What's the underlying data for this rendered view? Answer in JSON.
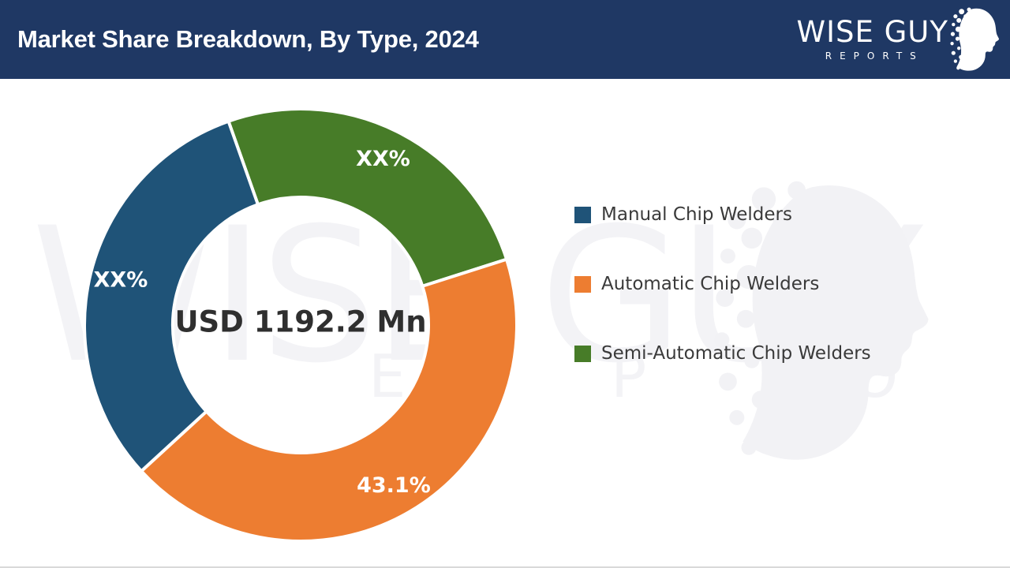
{
  "header": {
    "title": "Market Share Breakdown, By Type, 2024",
    "logo": {
      "wordmark": "WISE GUY",
      "subtext": "REPORTS"
    }
  },
  "watermark": {
    "wordmark": "WISE GUY",
    "subtext": "R E P O R T S"
  },
  "chart_data": {
    "type": "pie",
    "subtype": "donut",
    "title": "Market Share Breakdown, By Type, 2024",
    "center_label": "USD 1192.2 Mn",
    "unit": "percent of market share",
    "start_angle_deg": 109.5,
    "direction": "clockwise",
    "segments": [
      {
        "name": "Semi-Automatic Chip Welders",
        "value": 25.5,
        "display_label": "XX%",
        "color": "#477c28"
      },
      {
        "name": "Automatic Chip Welders",
        "value": 43.1,
        "display_label": "43.1%",
        "color": "#ed7d31"
      },
      {
        "name": "Manual Chip Welders",
        "value": 31.4,
        "display_label": "XX%",
        "color": "#1f5378"
      }
    ],
    "legend": [
      {
        "label": "Manual Chip Welders",
        "color": "#1f5378"
      },
      {
        "label": "Automatic Chip Welders",
        "color": "#ed7d31"
      },
      {
        "label": "Semi-Automatic Chip Welders",
        "color": "#477c28"
      }
    ],
    "legend_position": "right"
  },
  "colors": {
    "header_bg": "#1f3864",
    "page_bg": "#ffffff",
    "center_text": "#2f2f2f",
    "legend_text": "#3a3a3a",
    "watermark": "#f3f3f6",
    "bottom_line": "#d9d9d9"
  }
}
